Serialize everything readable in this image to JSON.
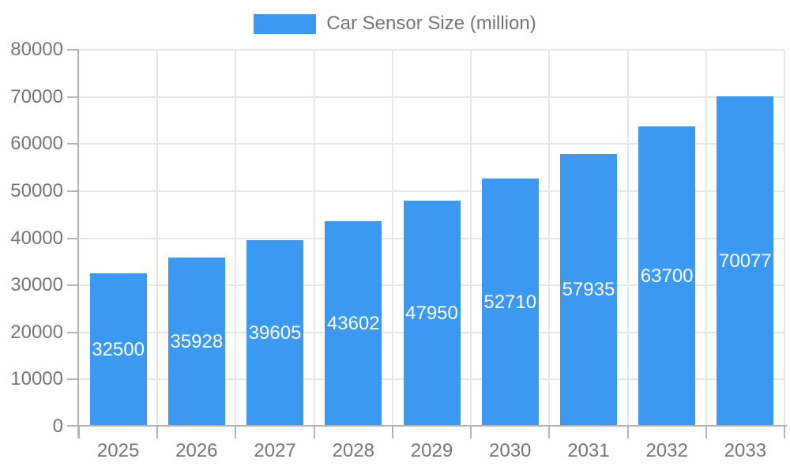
{
  "legend": {
    "label": "Car Sensor Size (million)"
  },
  "chart_data": {
    "type": "bar",
    "title": "Car Sensor Size (million)",
    "categories": [
      "2025",
      "2026",
      "2027",
      "2028",
      "2029",
      "2030",
      "2031",
      "2032",
      "2033"
    ],
    "series": [
      {
        "name": "Car Sensor Size (million)",
        "values": [
          32500,
          35928,
          39605,
          43602,
          47950,
          52710,
          57935,
          63700,
          70077
        ]
      }
    ],
    "xlabel": "",
    "ylabel": "",
    "ylim": [
      0,
      80000
    ],
    "y_tick_step": 10000,
    "y_tick_labels": [
      "0",
      "10000",
      "20000",
      "30000",
      "40000",
      "50000",
      "60000",
      "70000",
      "80000"
    ],
    "grid": true,
    "legend_position": "top",
    "value_labels": "inside-center",
    "colors": {
      "bar": "#3B99F1",
      "bar_label": "#FFFFFF",
      "axis_text": "#757575",
      "legend_text": "#757575",
      "gridline": "#E6E6E6",
      "axis_line": "#B3B3B3",
      "background": "#FFFFFF"
    }
  }
}
